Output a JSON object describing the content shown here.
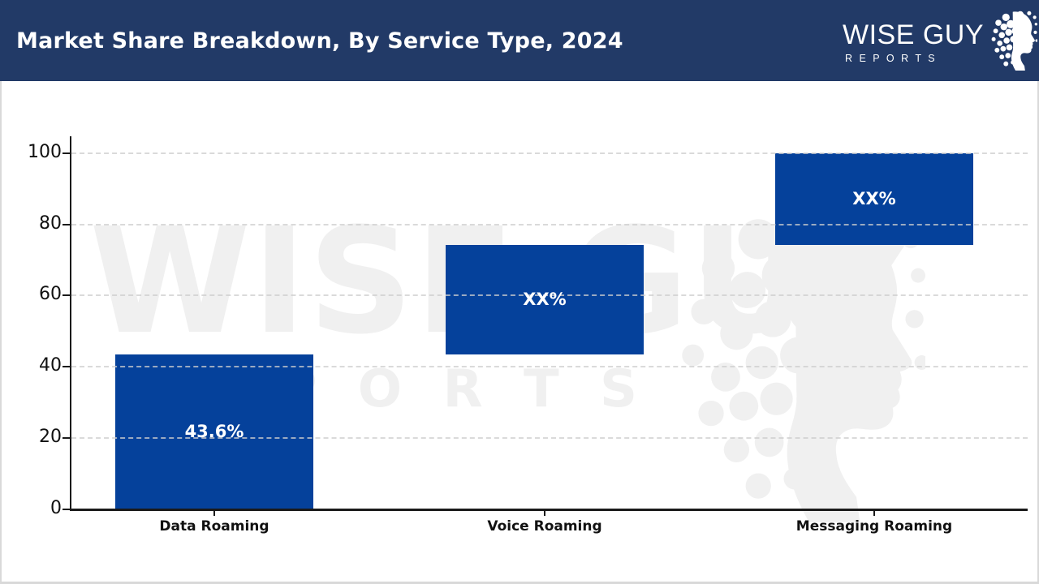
{
  "header": {
    "title": "Market Share Breakdown, By Service Type, 2024"
  },
  "logo": {
    "line1": "WISE GUY",
    "line2": "R E P O R T S"
  },
  "colors": {
    "header_bg": "#223A67",
    "bar": "#05419B",
    "bar_label": "#FFFFFF",
    "axis": "#1A1A1A",
    "gridline": "#DCDCDC",
    "text": "#111111",
    "frame_border": "#D9D9D9",
    "watermark": "#F1F1F1"
  },
  "chart_data": {
    "type": "bar",
    "subtype": "waterfall",
    "title": "Market Share Breakdown, By Service Type, 2024",
    "categories": [
      "Data Roaming",
      "Voice Roaming",
      "Messaging Roaming"
    ],
    "segments": [
      {
        "category": "Data Roaming",
        "start": 0,
        "end": 43.6,
        "label": "43.6%"
      },
      {
        "category": "Voice Roaming",
        "start": 43.6,
        "end": 74.3,
        "label": "XX%"
      },
      {
        "category": "Messaging Roaming",
        "start": 74.3,
        "end": 100,
        "label": "XX%"
      }
    ],
    "yticks": [
      0,
      20,
      40,
      60,
      80,
      100
    ],
    "ylim": [
      0,
      104
    ],
    "xlabel": "",
    "ylabel": "",
    "grid": "horizontal dashed",
    "legend": "none"
  }
}
